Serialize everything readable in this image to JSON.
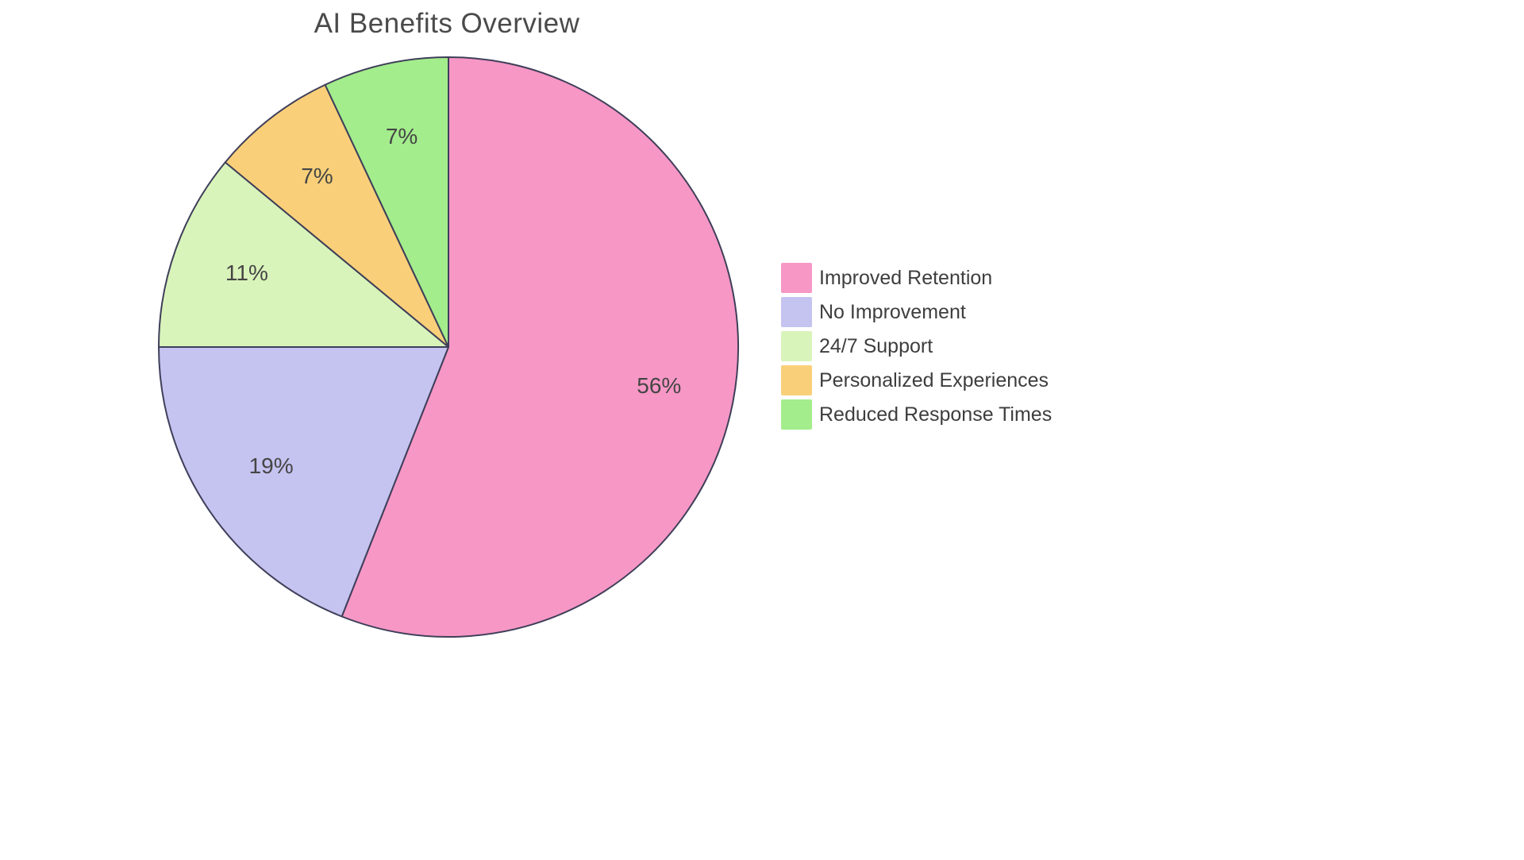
{
  "chart_data": {
    "type": "pie",
    "title": "AI Benefits Overview",
    "labels": [
      "Improved Retention",
      "No Improvement",
      "24/7 Support",
      "Personalized Experiences",
      "Reduced Response Times"
    ],
    "values": [
      56,
      19,
      11,
      7,
      7
    ],
    "percent_labels": [
      "56%",
      "19%",
      "11%",
      "7%",
      "7%"
    ],
    "colors": [
      "#F797C5",
      "#C5C3F0",
      "#D9F4BA",
      "#F9D079",
      "#A3ED8C"
    ],
    "stroke_color": "#3F3F5A",
    "label_color": "#454545",
    "start_angle_deg": -90,
    "direction": "clockwise",
    "legend_position": "right",
    "grid": false
  }
}
